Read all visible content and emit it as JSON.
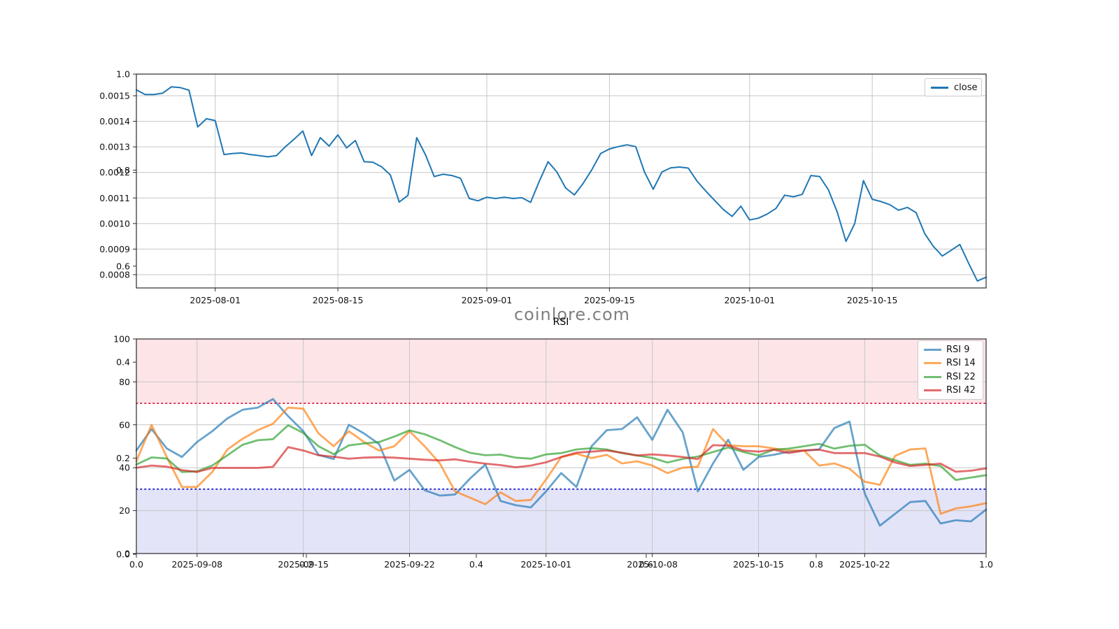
{
  "watermark": "coinlore.com",
  "overlay_axis": {
    "yticks": [
      "1.0",
      "0.8",
      "0.6",
      "0.4",
      "0.2",
      "0.0"
    ],
    "xticks": [
      "0.0",
      "0.2",
      "0.4",
      "0.6",
      "0.8",
      "1.0"
    ]
  },
  "colors": {
    "grid": "#c6c6c6",
    "spine": "#2b2b2b",
    "tick_text": "#111111",
    "close": "#1f77b4",
    "overbought_band": "rgba(230,30,60,0.12)",
    "oversold_band": "rgba(30,30,200,0.12)",
    "overbought_line": "#dc143c",
    "oversold_line": "#1212cd",
    "watermark": "#808080"
  },
  "chart_data": [
    {
      "type": "line",
      "name": "price",
      "title": "",
      "legend_position": "upper right",
      "grid": true,
      "ylim": [
        0.00075,
        0.00157
      ],
      "ytick_labels": [
        "0.0015",
        "0.0014",
        "0.0013",
        "0.0012",
        "0.0011",
        "0.0010",
        "0.0009",
        "0.0008"
      ],
      "ytick_values": [
        0.0015,
        0.0014,
        0.0013,
        0.0012,
        0.0011,
        0.001,
        0.0009,
        0.0008
      ],
      "xticks": [
        {
          "label": "2025-08-01",
          "index": 9
        },
        {
          "label": "2025-08-15",
          "index": 23
        },
        {
          "label": "2025-09-01",
          "index": 40
        },
        {
          "label": "2025-09-15",
          "index": 54
        },
        {
          "label": "2025-10-01",
          "index": 70
        },
        {
          "label": "2025-10-15",
          "index": 84
        }
      ],
      "series": [
        {
          "name": "close",
          "color": "#1f77b4",
          "values": [
            0.001523,
            0.001505,
            0.001505,
            0.00151,
            0.001535,
            0.001532,
            0.001522,
            0.001378,
            0.00141,
            0.001403,
            0.00127,
            0.001274,
            0.001276,
            0.00127,
            0.001266,
            0.001261,
            0.001266,
            0.0013,
            0.00133,
            0.001362,
            0.001266,
            0.001336,
            0.001303,
            0.001347,
            0.001296,
            0.001325,
            0.001242,
            0.00124,
            0.001222,
            0.00119,
            0.001084,
            0.00111,
            0.001336,
            0.001269,
            0.001184,
            0.001193,
            0.001188,
            0.001177,
            0.001098,
            0.001089,
            0.001103,
            0.001098,
            0.001103,
            0.001098,
            0.001101,
            0.001083,
            0.001166,
            0.001242,
            0.001202,
            0.001139,
            0.001112,
            0.001157,
            0.001211,
            0.001274,
            0.001292,
            0.001301,
            0.001308,
            0.001301,
            0.001202,
            0.001134,
            0.001202,
            0.001218,
            0.001221,
            0.001217,
            0.001166,
            0.001127,
            0.001091,
            0.001055,
            0.001028,
            0.001068,
            0.001014,
            0.001021,
            0.001037,
            0.001059,
            0.001111,
            0.001105,
            0.001114,
            0.001188,
            0.001184,
            0.001132,
            0.001045,
            0.00093,
            0.001,
            0.001168,
            0.001095,
            0.001086,
            0.001074,
            0.001052,
            0.001063,
            0.001043,
            0.00096,
            0.00091,
            0.000873,
            0.000895,
            0.000918,
            0.000845,
            0.000775,
            0.00079
          ]
        }
      ]
    },
    {
      "type": "line",
      "name": "rsi",
      "title": "RSI",
      "legend_position": "upper right",
      "grid": true,
      "ylim": [
        0,
        100
      ],
      "overbought": 70,
      "oversold": 30,
      "ytick_labels": [
        "100",
        "80",
        "60",
        "40",
        "20",
        "0"
      ],
      "ytick_values": [
        100,
        80,
        60,
        40,
        20,
        0
      ],
      "xticks": [
        {
          "label": "2025-09-08",
          "index": 4
        },
        {
          "label": "2025-09-15",
          "index": 11
        },
        {
          "label": "2025-09-22",
          "index": 18
        },
        {
          "label": "2025-10-01",
          "index": 27
        },
        {
          "label": "2025-10-08",
          "index": 34
        },
        {
          "label": "2025-10-15",
          "index": 41
        },
        {
          "label": "2025-10-22",
          "index": 48
        }
      ],
      "series": [
        {
          "name": "RSI 9",
          "color": "#1f77b4",
          "values": [
            48,
            58,
            49,
            45,
            52,
            57,
            63,
            67,
            68,
            72,
            64,
            57,
            46,
            44,
            60,
            56,
            51,
            34,
            39,
            29.5,
            27,
            27.5,
            35,
            41.5,
            24.5,
            22.5,
            21.5,
            29,
            37.5,
            31,
            50,
            57.5,
            58,
            63.5,
            53,
            67,
            56.5,
            29,
            42,
            53,
            39,
            45,
            46,
            47.5,
            48,
            48.5,
            58.5,
            61.5,
            28,
            13,
            18.5,
            24,
            24.5,
            14,
            15.5,
            15,
            20.5
          ]
        },
        {
          "name": "RSI 14",
          "color": "#ff7f0e",
          "values": [
            43,
            60,
            45,
            31,
            31,
            38,
            48.5,
            53.5,
            57.5,
            60.5,
            68,
            67.5,
            56,
            50,
            57,
            52,
            48,
            50,
            57,
            50,
            42,
            29,
            26,
            23,
            28.5,
            24.5,
            25,
            34.5,
            45,
            46.5,
            44.5,
            46,
            42,
            43,
            41,
            37.5,
            40,
            40.5,
            58,
            50.5,
            50,
            50,
            49,
            48,
            48,
            41,
            42,
            39.5,
            33.5,
            32,
            45.5,
            48.5,
            49,
            18.5,
            21,
            22,
            23.5
          ]
        },
        {
          "name": "RSI 22",
          "color": "#2ca02c",
          "values": [
            41.5,
            44.8,
            44.3,
            38,
            38.3,
            41,
            45.8,
            50.7,
            52.8,
            53.3,
            59.8,
            56.2,
            50,
            46.3,
            50.4,
            51.3,
            52,
            54.5,
            57.4,
            55.6,
            52.8,
            49.6,
            46.9,
            45.8,
            46.1,
            44.7,
            44.2,
            46.2,
            46.8,
            48.5,
            49.1,
            48.5,
            46.8,
            45.7,
            44.6,
            42.4,
            44.1,
            45.2,
            47.3,
            49.4,
            47.3,
            45.7,
            48.4,
            48.9,
            50,
            51.1,
            48.9,
            50.2,
            50.7,
            45.7,
            43.5,
            41.3,
            41.9,
            40.8,
            34.3,
            35.4,
            36.5
          ]
        },
        {
          "name": "RSI 42",
          "color": "#d62728",
          "values": [
            40,
            41,
            40.5,
            38.9,
            38,
            39.9,
            39.9,
            39.9,
            39.9,
            40.4,
            49.6,
            48,
            45.8,
            45.1,
            44.2,
            44.7,
            44.9,
            44.7,
            44.2,
            43.7,
            43.4,
            43.9,
            42.8,
            41.9,
            41.2,
            40.2,
            41,
            42.5,
            45,
            47,
            47.5,
            48,
            47,
            45.7,
            46.2,
            45.7,
            45,
            44,
            50.5,
            50.3,
            48,
            47.5,
            48.4,
            46.8,
            48,
            48.4,
            46.8,
            46.8,
            46.8,
            45.2,
            42.4,
            40.8,
            41.3,
            41.9,
            38.1,
            38.6,
            39.7
          ]
        }
      ]
    }
  ]
}
